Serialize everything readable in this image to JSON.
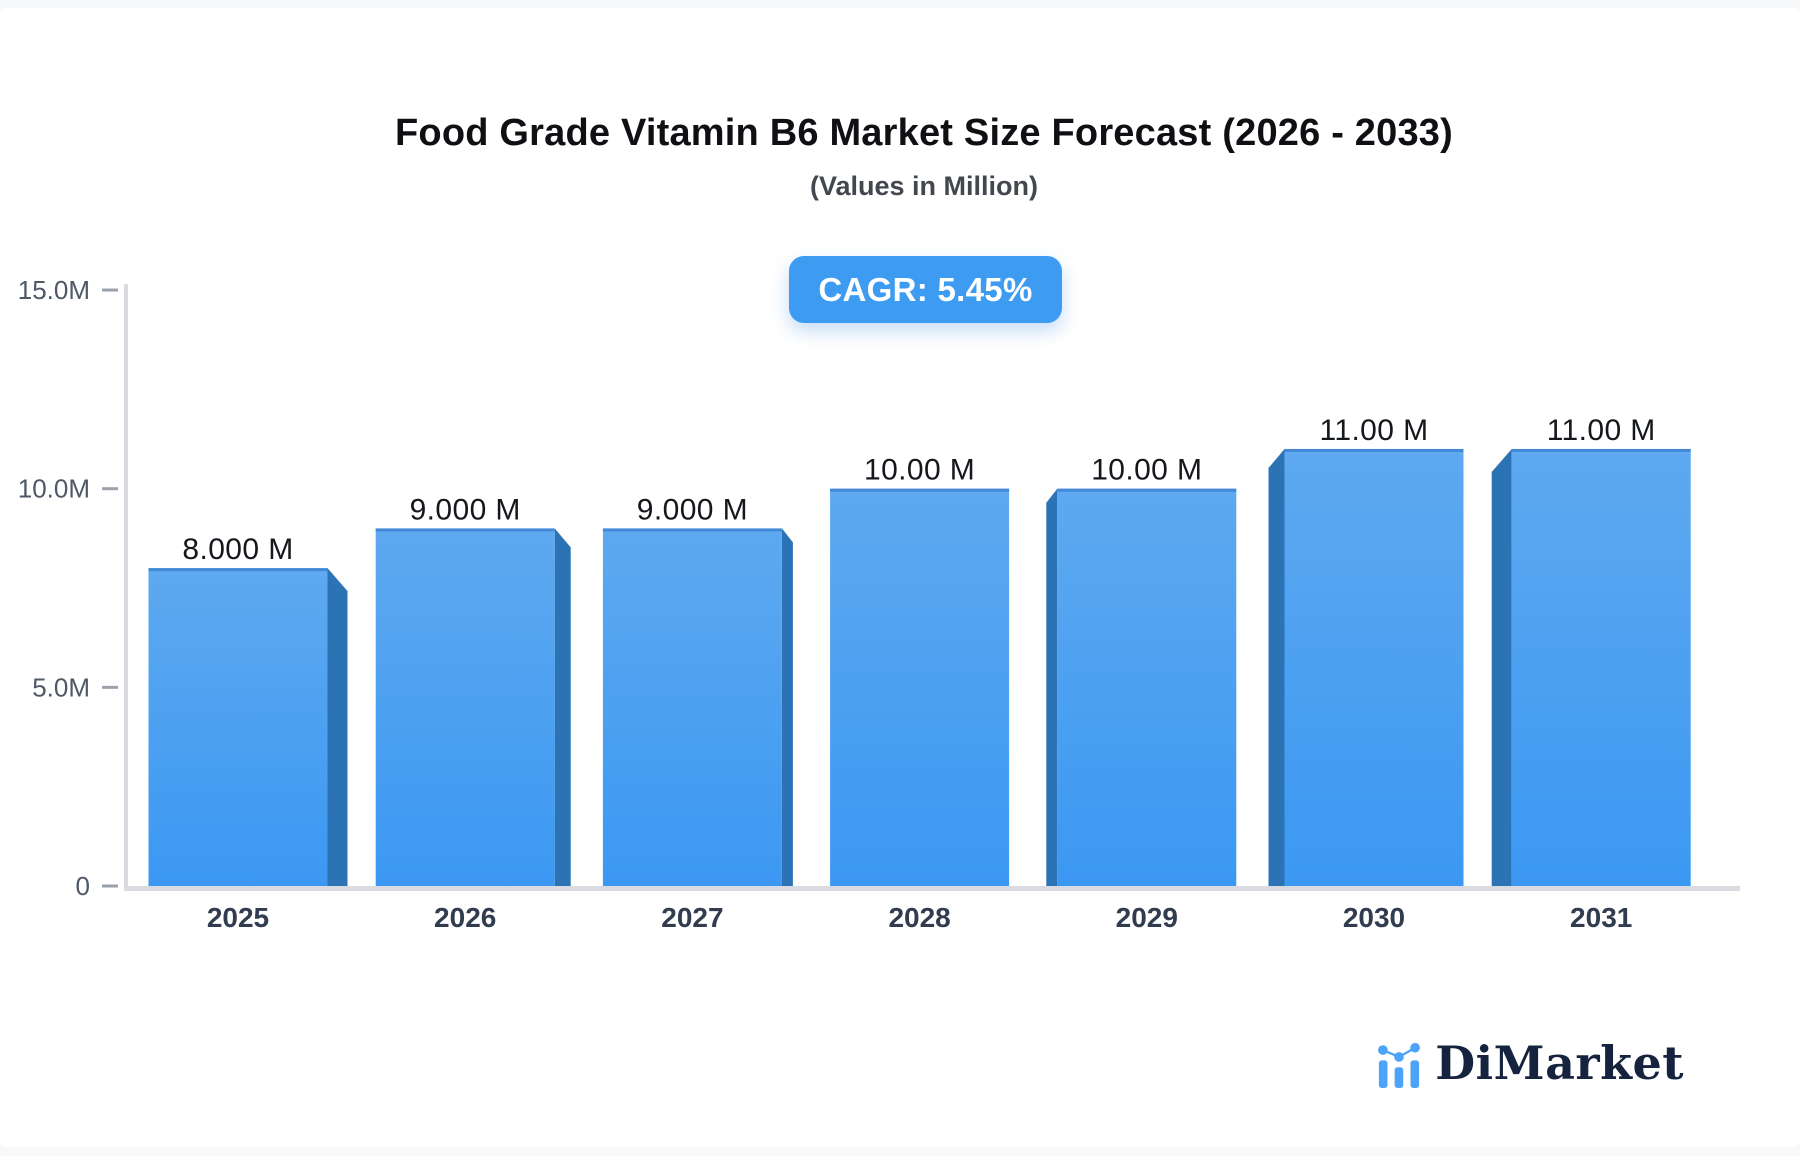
{
  "header": {
    "title": "Food Grade Vitamin B6 Market Size Forecast (2026 - 2033)",
    "subtitle": "(Values in Million)",
    "cagr_badge": "CAGR: 5.45%"
  },
  "footer": {
    "brand": "DiMarket"
  },
  "chart_data": {
    "type": "bar",
    "title": "Food Grade Vitamin B6 Market Size Forecast (2026 - 2033)",
    "subtitle": "(Values in Million)",
    "annotation": "CAGR: 5.45%",
    "unit": "Million",
    "categories": [
      "2025",
      "2026",
      "2027",
      "2028",
      "2029",
      "2030",
      "2031"
    ],
    "values": [
      8,
      9,
      9,
      10,
      10,
      11,
      11
    ],
    "bar_labels": [
      "8.000 M",
      "9.000 M",
      "9.000 M",
      "10.00 M",
      "10.00 M",
      "11.00 M",
      "11.00 M"
    ],
    "ylim": [
      0,
      15
    ],
    "y_ticks": [
      {
        "value": 0,
        "label": "0"
      },
      {
        "value": 5,
        "label": "5.0M"
      },
      {
        "value": 10,
        "label": "10.0M"
      },
      {
        "value": 15,
        "label": "15.0M"
      }
    ],
    "grid": "off",
    "legend": "none",
    "style": "3d-bars-center-perspective",
    "colors": {
      "bar_top": "#5EA9F0",
      "bar_bottom": "#3B98F2",
      "bar_side": "#2B73B5",
      "bar_edge": "#4389D8",
      "axis": "#D9DBE0",
      "tick": "#9AA1AB",
      "y_label": "#4E5866",
      "x_label": "#313C4E",
      "value_label": "#14171C",
      "badge_bg": "#3D9CF1",
      "badge_text": "#FFFFFF",
      "logo_blue": "#4DA3F7",
      "brand_navy": "#16233E"
    }
  }
}
